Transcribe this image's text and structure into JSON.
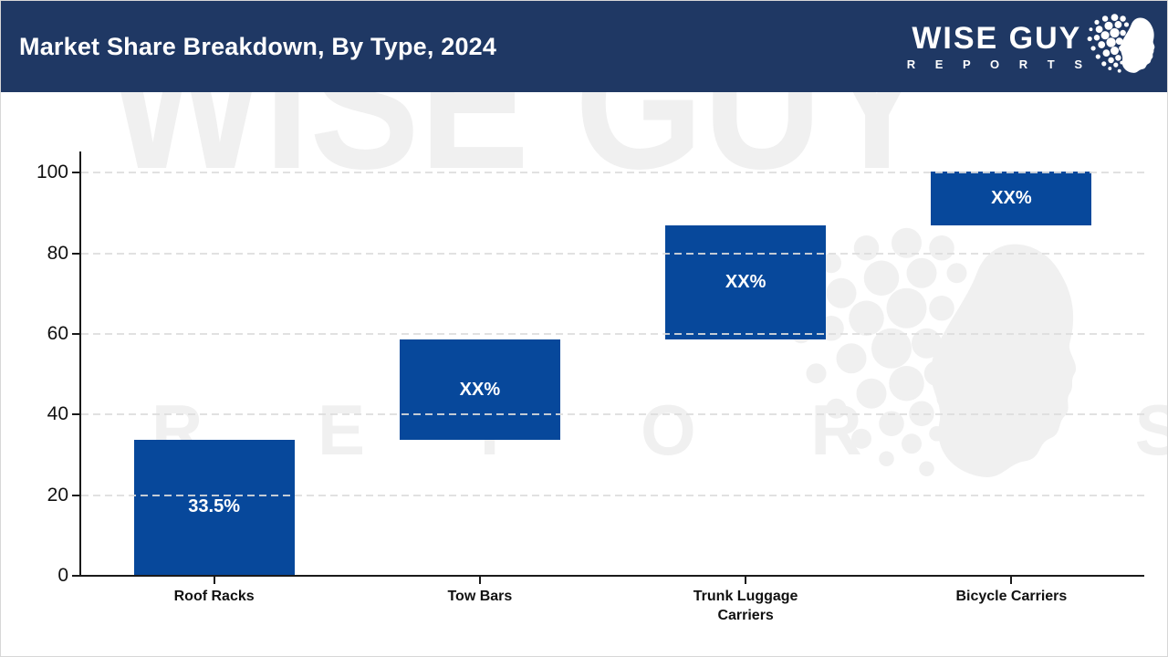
{
  "header": {
    "title": "Market Share Breakdown, By Type, 2024",
    "logo": {
      "line1": "WISE GUY",
      "line2": "R E P O R T S"
    }
  },
  "watermark": {
    "line1": "WISE GUY",
    "line2": "R E P O R T S"
  },
  "chart_data": {
    "type": "bar",
    "subtype": "waterfall",
    "title": "Market Share Breakdown, By Type, 2024",
    "categories": [
      "Roof Racks",
      "Tow Bars",
      "Trunk Luggage Carriers",
      "Bicycle Carriers"
    ],
    "segments": [
      {
        "category": "Roof Racks",
        "start": 0,
        "end": 33.5,
        "label": "33.5%"
      },
      {
        "category": "Tow Bars",
        "start": 33.5,
        "end": 58.3,
        "label": "XX%"
      },
      {
        "category": "Trunk Luggage Carriers",
        "start": 58.3,
        "end": 86.7,
        "label": "XX%"
      },
      {
        "category": "Bicycle Carriers",
        "start": 86.7,
        "end": 100,
        "label": "XX%"
      }
    ],
    "yticks": [
      0,
      20,
      40,
      60,
      80,
      100
    ],
    "ylim": [
      0,
      105
    ],
    "xlabel": "",
    "ylabel": "",
    "grid": "horizontal-dashed",
    "legend": "none"
  },
  "colors": {
    "header_bg": "#1F3864",
    "bar": "#07489B",
    "bar_label": "#FFFFFF",
    "gridline": "#DDDDDD",
    "axis": "#1A1A1A",
    "watermark": "#F0F0F0",
    "page_bg": "#FFFFFF"
  }
}
